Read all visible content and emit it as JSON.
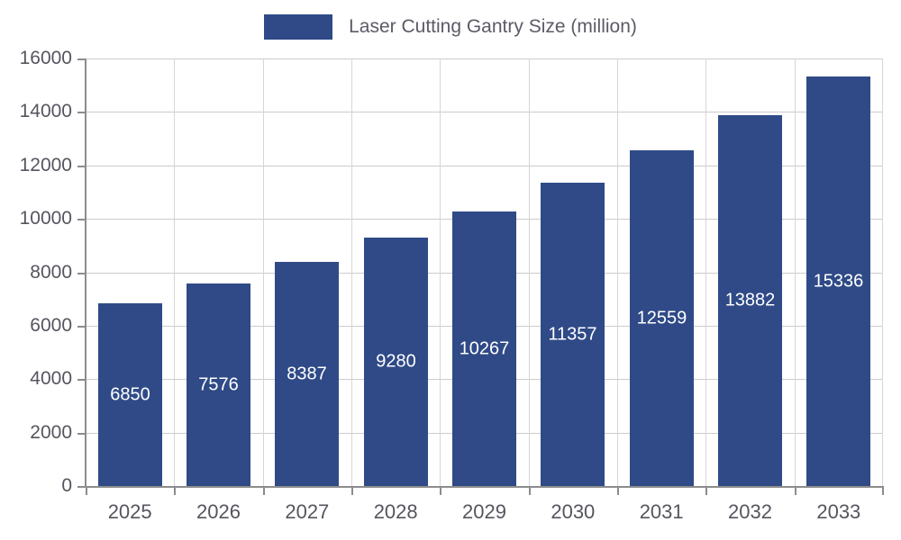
{
  "legend": {
    "label": "Laser Cutting Gantry Size (million)"
  },
  "colors": {
    "bar": "#2f4a87",
    "axis": "#8c8c8c",
    "grid": "#cccccc",
    "tick_text": "#55555f",
    "value_label": "#ffffff"
  },
  "chart_data": {
    "type": "bar",
    "title": "Laser Cutting Gantry Size (million)",
    "categories": [
      "2025",
      "2026",
      "2027",
      "2028",
      "2029",
      "2030",
      "2031",
      "2032",
      "2033"
    ],
    "values": [
      6850,
      7576,
      8387,
      9280,
      10267,
      11357,
      12559,
      13882,
      15336
    ],
    "xlabel": "",
    "ylabel": "",
    "ylim": [
      0,
      16000
    ],
    "ytick_step": 2000,
    "grid": true,
    "legend_position": "top",
    "value_labels": "inside-center"
  }
}
